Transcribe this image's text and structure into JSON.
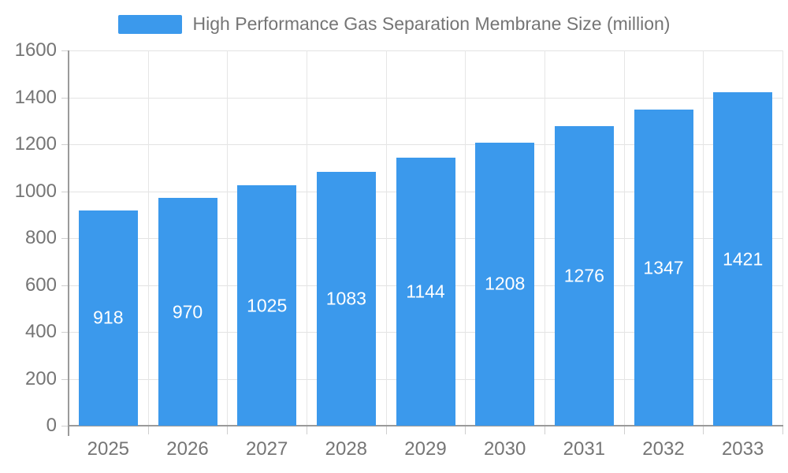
{
  "legend": {
    "label": "High Performance Gas Separation Membrane Size (million)"
  },
  "chart_data": {
    "type": "bar",
    "title": "High Performance Gas Separation Membrane Size (million)",
    "series_name": "High Performance Gas Separation Membrane Size (million)",
    "categories": [
      "2025",
      "2026",
      "2027",
      "2028",
      "2029",
      "2030",
      "2031",
      "2032",
      "2033"
    ],
    "values": [
      918,
      970,
      1025,
      1083,
      1144,
      1208,
      1276,
      1347,
      1421
    ],
    "xlabel": "",
    "ylabel": "",
    "ylim": [
      0,
      1600
    ],
    "ytick_interval": 200,
    "yticks": [
      0,
      200,
      400,
      600,
      800,
      1000,
      1200,
      1400,
      1600
    ],
    "grid": true,
    "legend_position": "top-center",
    "bar_color": "#3B99EC",
    "value_label_color": "#ffffff",
    "axis_text_color": "#757575",
    "grid_color": "#E3E3E3",
    "axis_line_color": "#9A9A9A"
  }
}
